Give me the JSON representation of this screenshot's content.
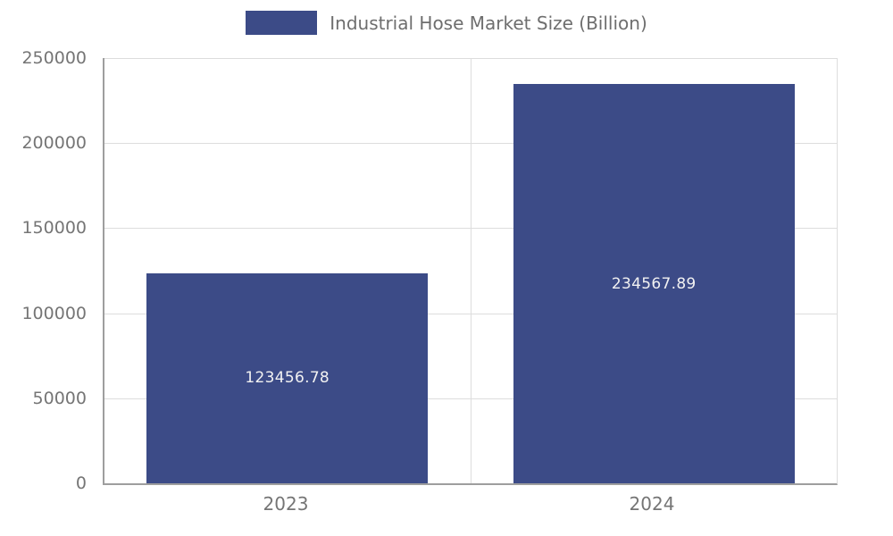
{
  "chart_data": {
    "type": "bar",
    "title": "Industrial Hose Market Size (Billion)",
    "categories": [
      "2023",
      "2024"
    ],
    "values": [
      123456.78,
      234567.89
    ],
    "value_labels": [
      "123456.78",
      "234567.89"
    ],
    "xlabel": "",
    "ylabel": "",
    "ylim": [
      0,
      250000
    ],
    "yticks": [
      0,
      50000,
      100000,
      150000,
      200000,
      250000
    ],
    "grid": true,
    "legend_position": "top",
    "colors": {
      "bar": "#3C4B87",
      "bar_label_text": "#F2F2F2",
      "grid_line": "#DDDDDD",
      "axis_line": "#9E9E9E",
      "tick_text": "#757575",
      "legend_text": "#6E6E6E"
    }
  }
}
